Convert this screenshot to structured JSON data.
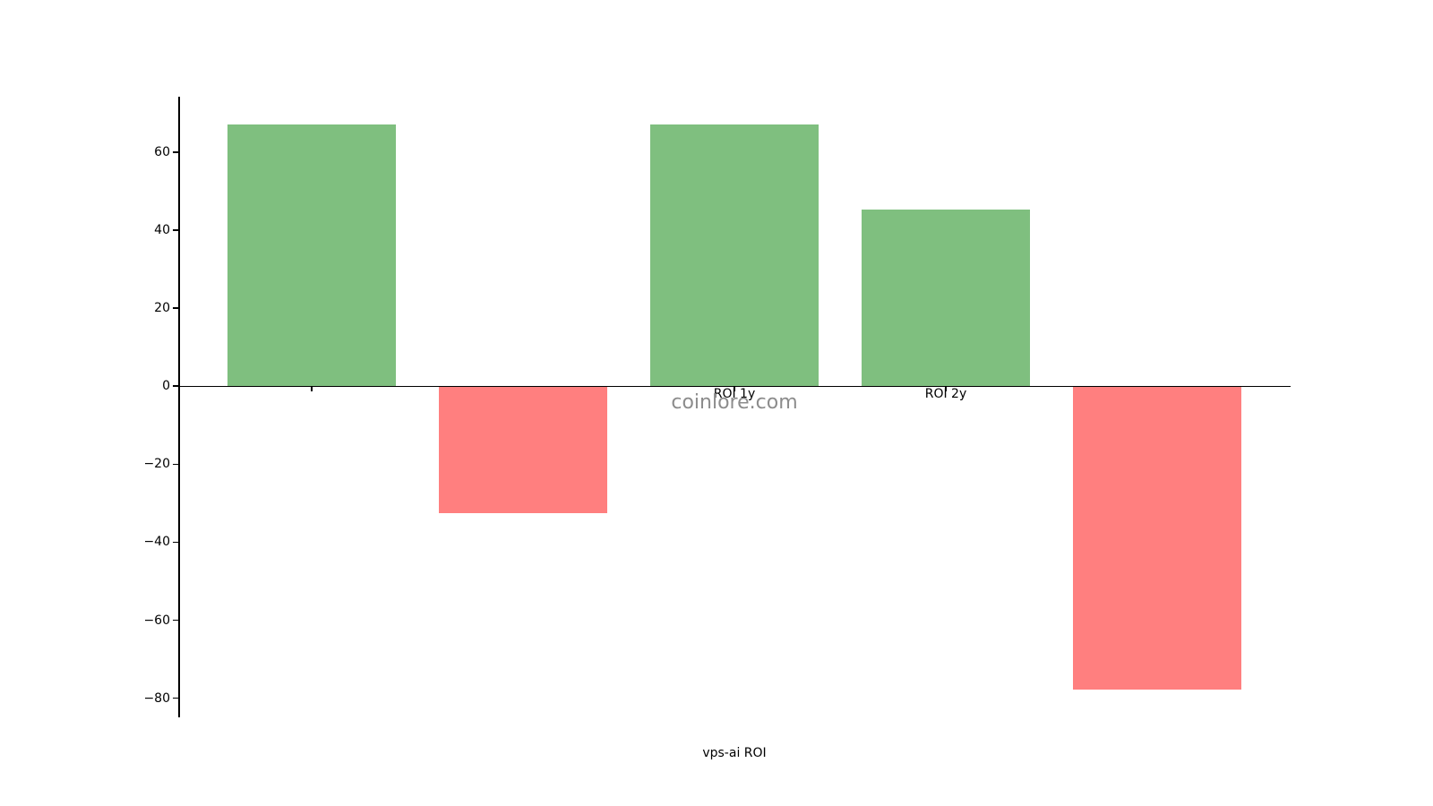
{
  "chart_data": {
    "type": "bar",
    "title": "",
    "xlabel": "vps-ai ROI",
    "ylabel": "",
    "categories": [
      "",
      "",
      "ROI 1y",
      "ROI 2y",
      ""
    ],
    "values": [
      67,
      -32.6,
      67,
      45.2,
      -77.7
    ],
    "bar_signs": [
      "positive",
      "negative",
      "positive",
      "positive",
      "negative"
    ],
    "positive_color": "#7fbf7f",
    "negative_color": "#ff7f7f",
    "yticks": [
      60,
      40,
      20,
      0,
      -20,
      -40,
      -60,
      -80
    ],
    "ylim": [
      -84.9,
      74.2
    ],
    "grid": false,
    "legend": null,
    "axis_color": "#000000",
    "tick_label_color": "#000000",
    "watermark": "coinlore.com",
    "watermark_color": "#8c8c8c"
  }
}
